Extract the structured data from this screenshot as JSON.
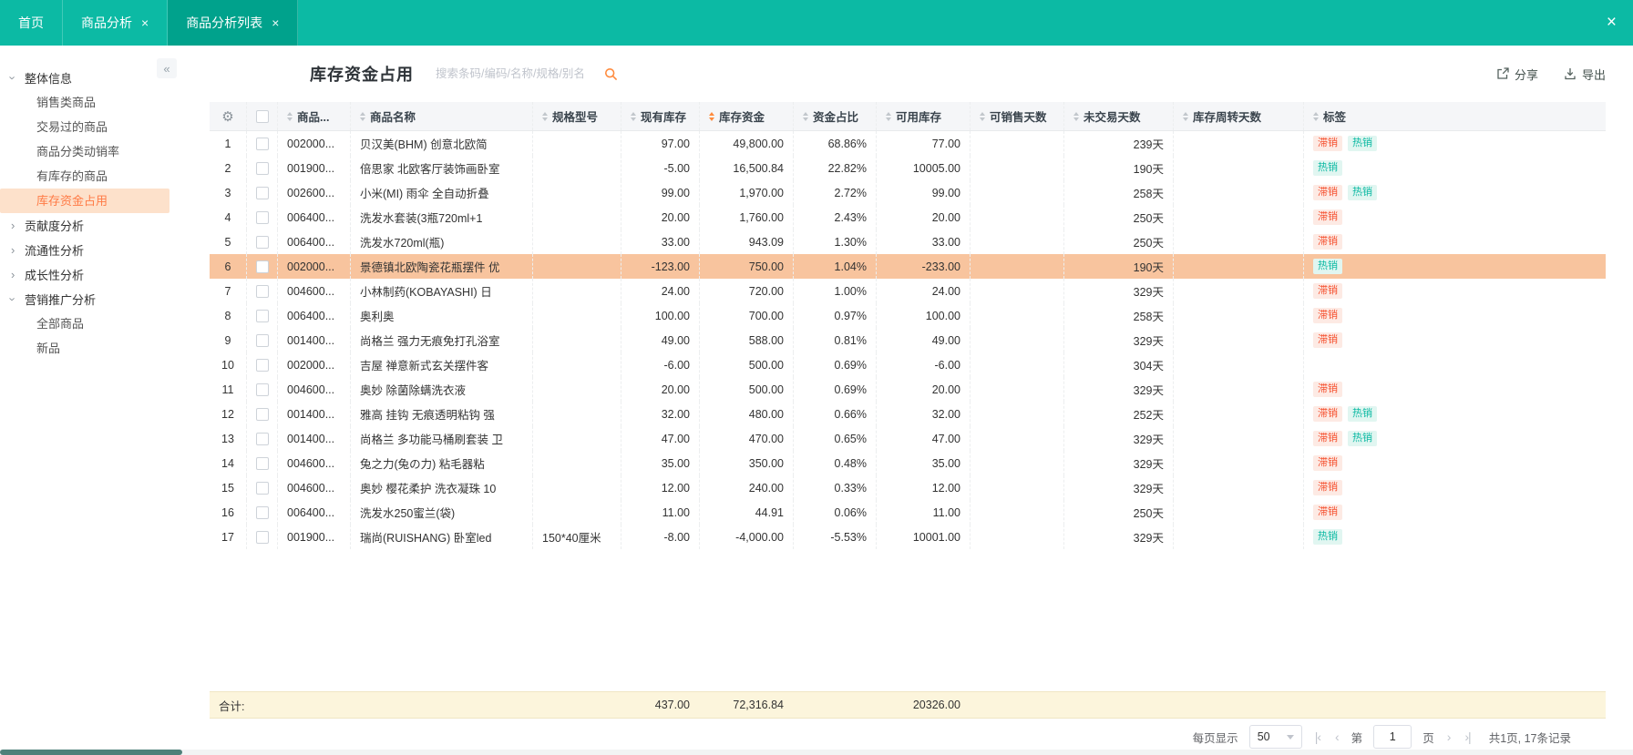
{
  "colors": {
    "topbar": "#0cbaa4",
    "topbar_active_tab": "#00a28c",
    "accent_orange": "#ff8a3c",
    "highlighted_row_bg": "#f8c49e",
    "sidebar_selected_bg": "#fde1cb",
    "sidebar_selected_text": "#ff7a45",
    "total_row_bg": "#fcf5dc"
  },
  "topbar": {
    "tabs": [
      {
        "label": "首页",
        "closable": false,
        "active": false
      },
      {
        "label": "商品分析",
        "closable": true,
        "active": false
      },
      {
        "label": "商品分析列表",
        "closable": true,
        "active": true
      }
    ],
    "tab_close_icon": "×",
    "window_close_icon": "×"
  },
  "sidebar": {
    "collapse_icon": "«",
    "selected_item": "库存资金占用",
    "groups": [
      {
        "label": "整体信息",
        "expanded": true,
        "items": [
          "销售类商品",
          "交易过的商品",
          "商品分类动销率",
          "有库存的商品",
          "库存资金占用"
        ]
      },
      {
        "label": "贡献度分析",
        "expanded": false,
        "items": []
      },
      {
        "label": "流通性分析",
        "expanded": false,
        "items": []
      },
      {
        "label": "成长性分析",
        "expanded": false,
        "items": []
      },
      {
        "label": "营销推广分析",
        "expanded": true,
        "items": [
          "全部商品",
          "新品"
        ]
      }
    ]
  },
  "header": {
    "title": "库存资金占用",
    "search_placeholder": "搜索条码/编码/名称/规格/别名",
    "share_label": "分享",
    "export_label": "导出"
  },
  "table": {
    "settings_icon": "⚙",
    "columns": [
      "商品...",
      "商品名称",
      "规格型号",
      "现有库存",
      "库存资金",
      "资金占比",
      "可用库存",
      "可销售天数",
      "未交易天数",
      "库存周转天数",
      "标签"
    ],
    "sorted_column": "库存资金",
    "rows": [
      {
        "no": "1",
        "code": "002000...",
        "name": "贝汉美(BHM) 创意北欧简",
        "spec": "",
        "stock": "97.00",
        "fund": "49,800.00",
        "ratio": "68.86%",
        "available": "77.00",
        "sellable_days": "",
        "untraded_days": "239天",
        "turnover_days": "",
        "tags": [
          "滞销",
          "热销"
        ]
      },
      {
        "no": "2",
        "code": "001900...",
        "name": "倍思家 北欧客厅装饰画卧室",
        "spec": "",
        "stock": "-5.00",
        "fund": "16,500.84",
        "ratio": "22.82%",
        "available": "10005.00",
        "sellable_days": "",
        "untraded_days": "190天",
        "turnover_days": "",
        "tags": [
          "热销"
        ]
      },
      {
        "no": "3",
        "code": "002600...",
        "name": "小米(MI) 雨伞 全自动折叠",
        "spec": "",
        "stock": "99.00",
        "fund": "1,970.00",
        "ratio": "2.72%",
        "available": "99.00",
        "sellable_days": "",
        "untraded_days": "258天",
        "turnover_days": "",
        "tags": [
          "滞销",
          "热销"
        ]
      },
      {
        "no": "4",
        "code": "006400...",
        "name": "洗发水套装(3瓶720ml+1",
        "spec": "",
        "stock": "20.00",
        "fund": "1,760.00",
        "ratio": "2.43%",
        "available": "20.00",
        "sellable_days": "",
        "untraded_days": "250天",
        "turnover_days": "",
        "tags": [
          "滞销"
        ]
      },
      {
        "no": "5",
        "code": "006400...",
        "name": "洗发水720ml(瓶)",
        "spec": "",
        "stock": "33.00",
        "fund": "943.09",
        "ratio": "1.30%",
        "available": "33.00",
        "sellable_days": "",
        "untraded_days": "250天",
        "turnover_days": "",
        "tags": [
          "滞销"
        ]
      },
      {
        "no": "6",
        "code": "002000...",
        "name": "景德镇北欧陶瓷花瓶摆件 优",
        "spec": "",
        "stock": "-123.00",
        "fund": "750.00",
        "ratio": "1.04%",
        "available": "-233.00",
        "sellable_days": "",
        "untraded_days": "190天",
        "turnover_days": "",
        "tags": [
          "热销"
        ],
        "highlighted": true
      },
      {
        "no": "7",
        "code": "004600...",
        "name": "小林制药(KOBAYASHI) 日",
        "spec": "",
        "stock": "24.00",
        "fund": "720.00",
        "ratio": "1.00%",
        "available": "24.00",
        "sellable_days": "",
        "untraded_days": "329天",
        "turnover_days": "",
        "tags": [
          "滞销"
        ]
      },
      {
        "no": "8",
        "code": "006400...",
        "name": "奥利奥",
        "spec": "",
        "stock": "100.00",
        "fund": "700.00",
        "ratio": "0.97%",
        "available": "100.00",
        "sellable_days": "",
        "untraded_days": "258天",
        "turnover_days": "",
        "tags": [
          "滞销"
        ]
      },
      {
        "no": "9",
        "code": "001400...",
        "name": "尚格兰 强力无痕免打孔浴室",
        "spec": "",
        "stock": "49.00",
        "fund": "588.00",
        "ratio": "0.81%",
        "available": "49.00",
        "sellable_days": "",
        "untraded_days": "329天",
        "turnover_days": "",
        "tags": [
          "滞销"
        ]
      },
      {
        "no": "10",
        "code": "002000...",
        "name": "吉屋 禅意新式玄关摆件客",
        "spec": "",
        "stock": "-6.00",
        "fund": "500.00",
        "ratio": "0.69%",
        "available": "-6.00",
        "sellable_days": "",
        "untraded_days": "304天",
        "turnover_days": "",
        "tags": []
      },
      {
        "no": "11",
        "code": "004600...",
        "name": "奥妙 除菌除螨洗衣液",
        "spec": "",
        "stock": "20.00",
        "fund": "500.00",
        "ratio": "0.69%",
        "available": "20.00",
        "sellable_days": "",
        "untraded_days": "329天",
        "turnover_days": "",
        "tags": [
          "滞销"
        ]
      },
      {
        "no": "12",
        "code": "001400...",
        "name": "雅高 挂钩 无痕透明粘钩 强",
        "spec": "",
        "stock": "32.00",
        "fund": "480.00",
        "ratio": "0.66%",
        "available": "32.00",
        "sellable_days": "",
        "untraded_days": "252天",
        "turnover_days": "",
        "tags": [
          "滞销",
          "热销"
        ]
      },
      {
        "no": "13",
        "code": "001400...",
        "name": "尚格兰 多功能马桶刷套装 卫",
        "spec": "",
        "stock": "47.00",
        "fund": "470.00",
        "ratio": "0.65%",
        "available": "47.00",
        "sellable_days": "",
        "untraded_days": "329天",
        "turnover_days": "",
        "tags": [
          "滞销",
          "热销"
        ]
      },
      {
        "no": "14",
        "code": "004600...",
        "name": "兔之力(兔の力) 粘毛器粘",
        "spec": "",
        "stock": "35.00",
        "fund": "350.00",
        "ratio": "0.48%",
        "available": "35.00",
        "sellable_days": "",
        "untraded_days": "329天",
        "turnover_days": "",
        "tags": [
          "滞销"
        ]
      },
      {
        "no": "15",
        "code": "004600...",
        "name": "奥妙 樱花柔护 洗衣凝珠 10",
        "spec": "",
        "stock": "12.00",
        "fund": "240.00",
        "ratio": "0.33%",
        "available": "12.00",
        "sellable_days": "",
        "untraded_days": "329天",
        "turnover_days": "",
        "tags": [
          "滞销"
        ]
      },
      {
        "no": "16",
        "code": "006400...",
        "name": "洗发水250蜜兰(袋)",
        "spec": "",
        "stock": "11.00",
        "fund": "44.91",
        "ratio": "0.06%",
        "available": "11.00",
        "sellable_days": "",
        "untraded_days": "250天",
        "turnover_days": "",
        "tags": [
          "滞销"
        ]
      },
      {
        "no": "17",
        "code": "001900...",
        "name": "瑞尚(RUISHANG) 卧室led",
        "spec": "150*40厘米",
        "stock": "-8.00",
        "fund": "-4,000.00",
        "ratio": "-5.53%",
        "available": "10001.00",
        "sellable_days": "",
        "untraded_days": "329天",
        "turnover_days": "",
        "tags": [
          "热销"
        ]
      }
    ],
    "total": {
      "label": "合计:",
      "stock": "437.00",
      "fund": "72,316.84",
      "available": "20326.00"
    }
  },
  "tag_styles": {
    "滞销": {
      "text": "#f5502e",
      "bg": "#fdeae4"
    },
    "热销": {
      "text": "#0cb9a3",
      "bg": "#e1f6f1"
    }
  },
  "pagination": {
    "page_size_label": "每页显示",
    "page_size": "50",
    "first_icon": "|‹",
    "prev_icon": "‹",
    "next_icon": "›",
    "last_icon": "›|",
    "page_prefix": "第",
    "current_page": "1",
    "page_suffix": "页",
    "total_text": "共1页, 17条记录"
  }
}
